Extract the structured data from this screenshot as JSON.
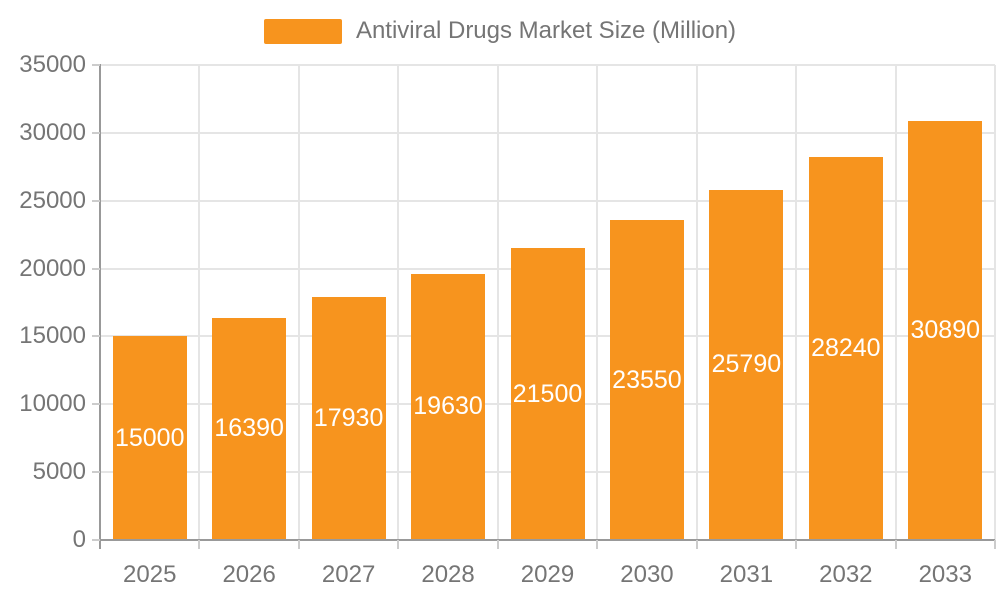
{
  "chart_data": {
    "type": "bar",
    "title": "Antiviral Drugs Market Size (Million)",
    "legend_entries": [
      "Antiviral Drugs Market Size (Million)"
    ],
    "legend_position": "top-center",
    "categories": [
      "2025",
      "2026",
      "2027",
      "2028",
      "2029",
      "2030",
      "2031",
      "2032",
      "2033"
    ],
    "values": [
      15000,
      16390,
      17930,
      19630,
      21500,
      23550,
      25790,
      28240,
      30890
    ],
    "value_labels_shown": true,
    "value_label_position": "inside-center",
    "xlabel": "",
    "ylabel": "",
    "ylim": [
      0,
      35000
    ],
    "yticks": [
      0,
      5000,
      10000,
      15000,
      20000,
      25000,
      30000,
      35000
    ],
    "grid": "horizontal-and-vertical",
    "colors": {
      "bar": "#F7941E",
      "value_label": "#FFFFFF",
      "axis_line": "#999999",
      "grid_line": "#E5E5E5",
      "tick_line": "#CCCCCC",
      "tick_label": "#757575",
      "legend_text": "#757575",
      "background": "#FFFFFF"
    }
  }
}
